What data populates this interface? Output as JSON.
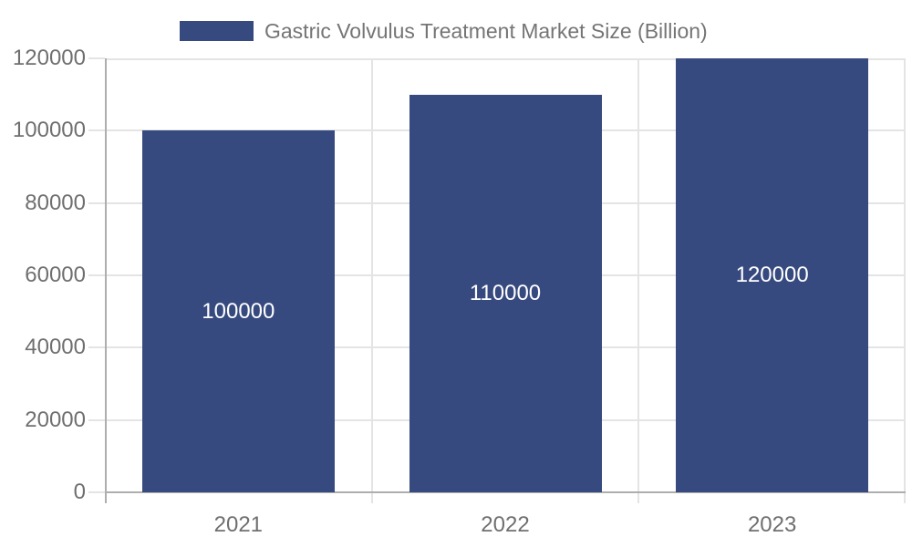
{
  "legend": {
    "label": "Gastric Volvulus Treatment Market Size (Billion)"
  },
  "chart_data": {
    "type": "bar",
    "title": "Gastric Volvulus Treatment Market Size (Billion)",
    "categories": [
      "2021",
      "2022",
      "2023"
    ],
    "values": [
      100000,
      110000,
      120000
    ],
    "series": [
      {
        "name": "Gastric Volvulus Treatment Market Size (Billion)",
        "values": [
          100000,
          110000,
          120000
        ]
      }
    ],
    "bar_labels": [
      "100000",
      "110000",
      "120000"
    ],
    "xlabel": "",
    "ylabel": "",
    "ylim": [
      0,
      120000
    ],
    "yticks": [
      0,
      20000,
      40000,
      60000,
      80000,
      100000,
      120000
    ],
    "ytick_labels": [
      "0",
      "20000",
      "40000",
      "60000",
      "80000",
      "100000",
      "120000"
    ],
    "grid": true,
    "legend_position": "top",
    "colors": {
      "bar": "#374A7F",
      "grid": "#E4E4E4",
      "axis": "#AEAEAE",
      "tick_label": "#6F6F6F",
      "legend_text": "#757575",
      "value_label": "#FFFFFF",
      "background": "#FFFFFF"
    }
  }
}
